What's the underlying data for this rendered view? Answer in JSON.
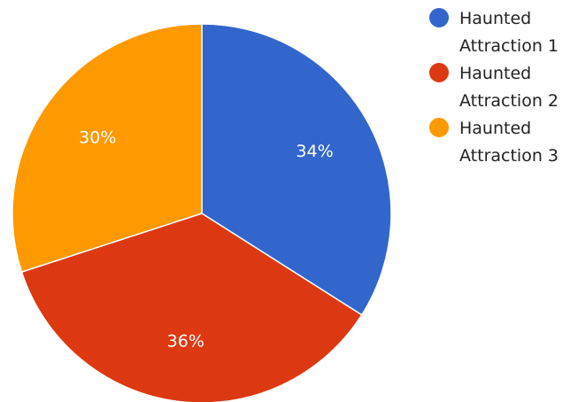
{
  "chart_data": {
    "type": "pie",
    "slices": [
      {
        "name": "Haunted Attraction 1",
        "value": 34,
        "label": "34%",
        "color": "#3366cc"
      },
      {
        "name": "Haunted Attraction 2",
        "value": 36,
        "label": "36%",
        "color": "#dc3912"
      },
      {
        "name": "Haunted Attraction 3",
        "value": 30,
        "label": "30%",
        "color": "#ff9900"
      }
    ],
    "start_angle_deg": 0,
    "direction": "clockwise",
    "legend_placement": "right",
    "label_color": "#ffffff"
  },
  "legend": {
    "items": [
      {
        "line1": "Haunted",
        "line2": "Attraction 1",
        "color": "#3366cc"
      },
      {
        "line1": "Haunted",
        "line2": "Attraction 2",
        "color": "#dc3912"
      },
      {
        "line1": "Haunted",
        "line2": "Attraction 3",
        "color": "#ff9900"
      }
    ]
  }
}
